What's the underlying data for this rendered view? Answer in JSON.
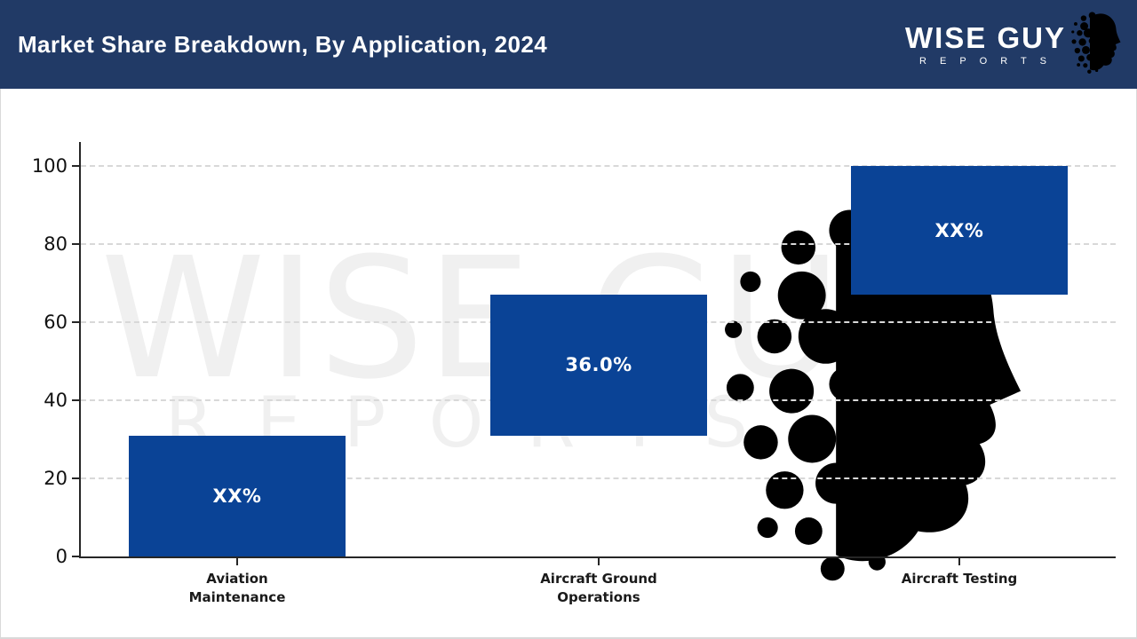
{
  "brand": {
    "name": "WISE GUY",
    "sub": "R E P O R T S"
  },
  "colors": {
    "header_bg": "#213a66",
    "bar": "#0a4396",
    "grid": "#d8d8d8",
    "axis": "#262626",
    "value_label": "#ffffff",
    "watermark": "#f0f0f0"
  },
  "chart_data": {
    "type": "bar",
    "subtype": "floating-waterfall",
    "title": "Market Share Breakdown, By Application, 2024",
    "categories": [
      "Aviation Maintenance",
      "Aircraft Ground Operations",
      "Aircraft Testing"
    ],
    "category_lines": [
      [
        "Aviation",
        "Maintenance"
      ],
      [
        "Aircraft Ground",
        "Operations"
      ],
      [
        "Aircraft Testing"
      ]
    ],
    "segments": [
      {
        "category": "Aviation Maintenance",
        "start": 0,
        "end": 31,
        "height": 31,
        "label": "XX%"
      },
      {
        "category": "Aircraft Ground Operations",
        "start": 31,
        "end": 67,
        "height": 36,
        "label": "36.0%"
      },
      {
        "category": "Aircraft Testing",
        "start": 67,
        "end": 100,
        "height": 33,
        "label": "XX%"
      }
    ],
    "xlabel": "",
    "ylabel": "",
    "ylim": [
      0,
      106
    ],
    "yticks": [
      0,
      20,
      40,
      60,
      80,
      100
    ],
    "grid": {
      "horizontal": true,
      "style": "dashed"
    },
    "legend": null,
    "bar_color": "#0a4396"
  }
}
